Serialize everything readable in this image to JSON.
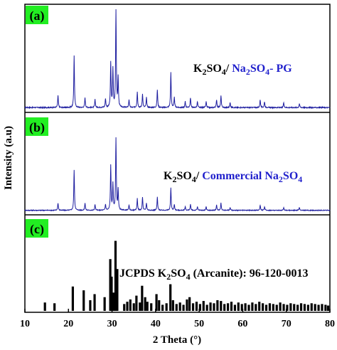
{
  "chart_data": {
    "type": "line",
    "xlabel": "2 Theta (°)",
    "ylabel": "Intensity (a.u)",
    "xlim": [
      10,
      80
    ],
    "xticks": [
      10,
      20,
      30,
      40,
      50,
      60,
      70,
      80
    ],
    "grid": false,
    "legend": "none",
    "colors": {
      "pattern": "#1f1fa0",
      "reference": "#000000",
      "accent_text": "#1f1fcc",
      "tag_bg": "#22ee22"
    },
    "panels": [
      {
        "tag": "(a)",
        "series_type": "line",
        "annotation": {
          "part1": "K",
          "sub1": "2",
          "part2": "SO",
          "sub2": "4",
          "part3": "/ ",
          "p4": "Na",
          "s4": "2",
          "p5": "SO",
          "s5": "4",
          "p6": "- PG"
        },
        "peaks": [
          [
            17.6,
            0.12
          ],
          [
            21.3,
            0.52
          ],
          [
            23.8,
            0.1
          ],
          [
            26.1,
            0.08
          ],
          [
            28.5,
            0.09
          ],
          [
            29.7,
            0.45
          ],
          [
            30.2,
            0.38
          ],
          [
            30.9,
            1.0
          ],
          [
            31.4,
            0.3
          ],
          [
            33.9,
            0.08
          ],
          [
            35.8,
            0.16
          ],
          [
            37.0,
            0.14
          ],
          [
            37.9,
            0.1
          ],
          [
            40.4,
            0.18
          ],
          [
            43.5,
            0.35
          ],
          [
            44.3,
            0.1
          ],
          [
            46.8,
            0.06
          ],
          [
            48.0,
            0.1
          ],
          [
            49.6,
            0.06
          ],
          [
            51.6,
            0.06
          ],
          [
            54.0,
            0.08
          ],
          [
            55.0,
            0.12
          ],
          [
            57.1,
            0.05
          ],
          [
            64.0,
            0.08
          ],
          [
            65.0,
            0.06
          ],
          [
            69.4,
            0.05
          ],
          [
            73.0,
            0.04
          ]
        ]
      },
      {
        "tag": "(b)",
        "series_type": "line",
        "annotation": {
          "part1": "K",
          "sub1": "2",
          "part2": "SO",
          "sub2": "4",
          "part3": "/ ",
          "p4": "Commercial Na",
          "s4": "2",
          "p5": "SO",
          "s5": "4",
          "p6": ""
        },
        "peaks": [
          [
            17.6,
            0.1
          ],
          [
            21.3,
            0.55
          ],
          [
            23.8,
            0.1
          ],
          [
            26.1,
            0.08
          ],
          [
            28.5,
            0.08
          ],
          [
            29.7,
            0.6
          ],
          [
            30.2,
            0.35
          ],
          [
            30.9,
            1.0
          ],
          [
            31.4,
            0.28
          ],
          [
            33.9,
            0.07
          ],
          [
            35.8,
            0.16
          ],
          [
            37.0,
            0.18
          ],
          [
            37.9,
            0.1
          ],
          [
            40.4,
            0.18
          ],
          [
            43.5,
            0.3
          ],
          [
            44.3,
            0.08
          ],
          [
            46.8,
            0.05
          ],
          [
            48.0,
            0.08
          ],
          [
            49.6,
            0.05
          ],
          [
            51.6,
            0.05
          ],
          [
            54.0,
            0.07
          ],
          [
            55.0,
            0.1
          ],
          [
            57.1,
            0.04
          ],
          [
            64.0,
            0.07
          ],
          [
            65.0,
            0.05
          ],
          [
            69.4,
            0.04
          ],
          [
            73.0,
            0.04
          ]
        ]
      },
      {
        "tag": "(c)",
        "series_type": "sticks",
        "annotation": {
          "part1": "JCPDS K",
          "sub1": "2",
          "part2": "SO",
          "sub2": "4",
          "part3": " (Arcanite): 96-120-0013",
          "p4": "",
          "s4": "",
          "p5": "",
          "s5": "",
          "p6": ""
        },
        "sticks": [
          [
            14.6,
            0.11
          ],
          [
            16.8,
            0.1
          ],
          [
            21.0,
            0.32
          ],
          [
            23.5,
            0.27
          ],
          [
            25.0,
            0.14
          ],
          [
            26.0,
            0.22
          ],
          [
            28.3,
            0.18
          ],
          [
            29.6,
            0.68
          ],
          [
            29.9,
            0.45
          ],
          [
            30.4,
            0.24
          ],
          [
            30.8,
            0.92
          ],
          [
            31.2,
            0.55
          ],
          [
            32.8,
            0.09
          ],
          [
            33.5,
            0.12
          ],
          [
            34.2,
            0.15
          ],
          [
            35.0,
            0.1
          ],
          [
            35.6,
            0.2
          ],
          [
            36.4,
            0.11
          ],
          [
            36.9,
            0.33
          ],
          [
            37.6,
            0.18
          ],
          [
            38.1,
            0.12
          ],
          [
            39.0,
            0.1
          ],
          [
            40.2,
            0.22
          ],
          [
            40.8,
            0.14
          ],
          [
            41.6,
            0.08
          ],
          [
            42.5,
            0.1
          ],
          [
            43.4,
            0.35
          ],
          [
            44.0,
            0.14
          ],
          [
            44.8,
            0.09
          ],
          [
            45.6,
            0.11
          ],
          [
            46.4,
            0.08
          ],
          [
            47.2,
            0.15
          ],
          [
            47.8,
            0.18
          ],
          [
            48.6,
            0.1
          ],
          [
            49.4,
            0.12
          ],
          [
            50.2,
            0.09
          ],
          [
            51.0,
            0.13
          ],
          [
            51.8,
            0.08
          ],
          [
            52.6,
            0.11
          ],
          [
            53.4,
            0.1
          ],
          [
            54.2,
            0.14
          ],
          [
            55.0,
            0.13
          ],
          [
            55.8,
            0.09
          ],
          [
            56.6,
            0.1
          ],
          [
            57.4,
            0.12
          ],
          [
            58.2,
            0.08
          ],
          [
            59.0,
            0.11
          ],
          [
            59.8,
            0.09
          ],
          [
            60.6,
            0.1
          ],
          [
            61.4,
            0.08
          ],
          [
            62.2,
            0.11
          ],
          [
            63.0,
            0.09
          ],
          [
            63.8,
            0.12
          ],
          [
            64.6,
            0.1
          ],
          [
            65.4,
            0.08
          ],
          [
            66.2,
            0.1
          ],
          [
            67.0,
            0.09
          ],
          [
            67.8,
            0.08
          ],
          [
            68.6,
            0.11
          ],
          [
            69.4,
            0.09
          ],
          [
            70.2,
            0.08
          ],
          [
            71.0,
            0.1
          ],
          [
            71.8,
            0.09
          ],
          [
            72.6,
            0.08
          ],
          [
            73.4,
            0.1
          ],
          [
            74.2,
            0.09
          ],
          [
            75.0,
            0.08
          ],
          [
            75.8,
            0.1
          ],
          [
            76.6,
            0.09
          ],
          [
            77.4,
            0.08
          ],
          [
            78.2,
            0.09
          ],
          [
            79.0,
            0.08
          ],
          [
            79.6,
            0.07
          ]
        ]
      }
    ]
  }
}
